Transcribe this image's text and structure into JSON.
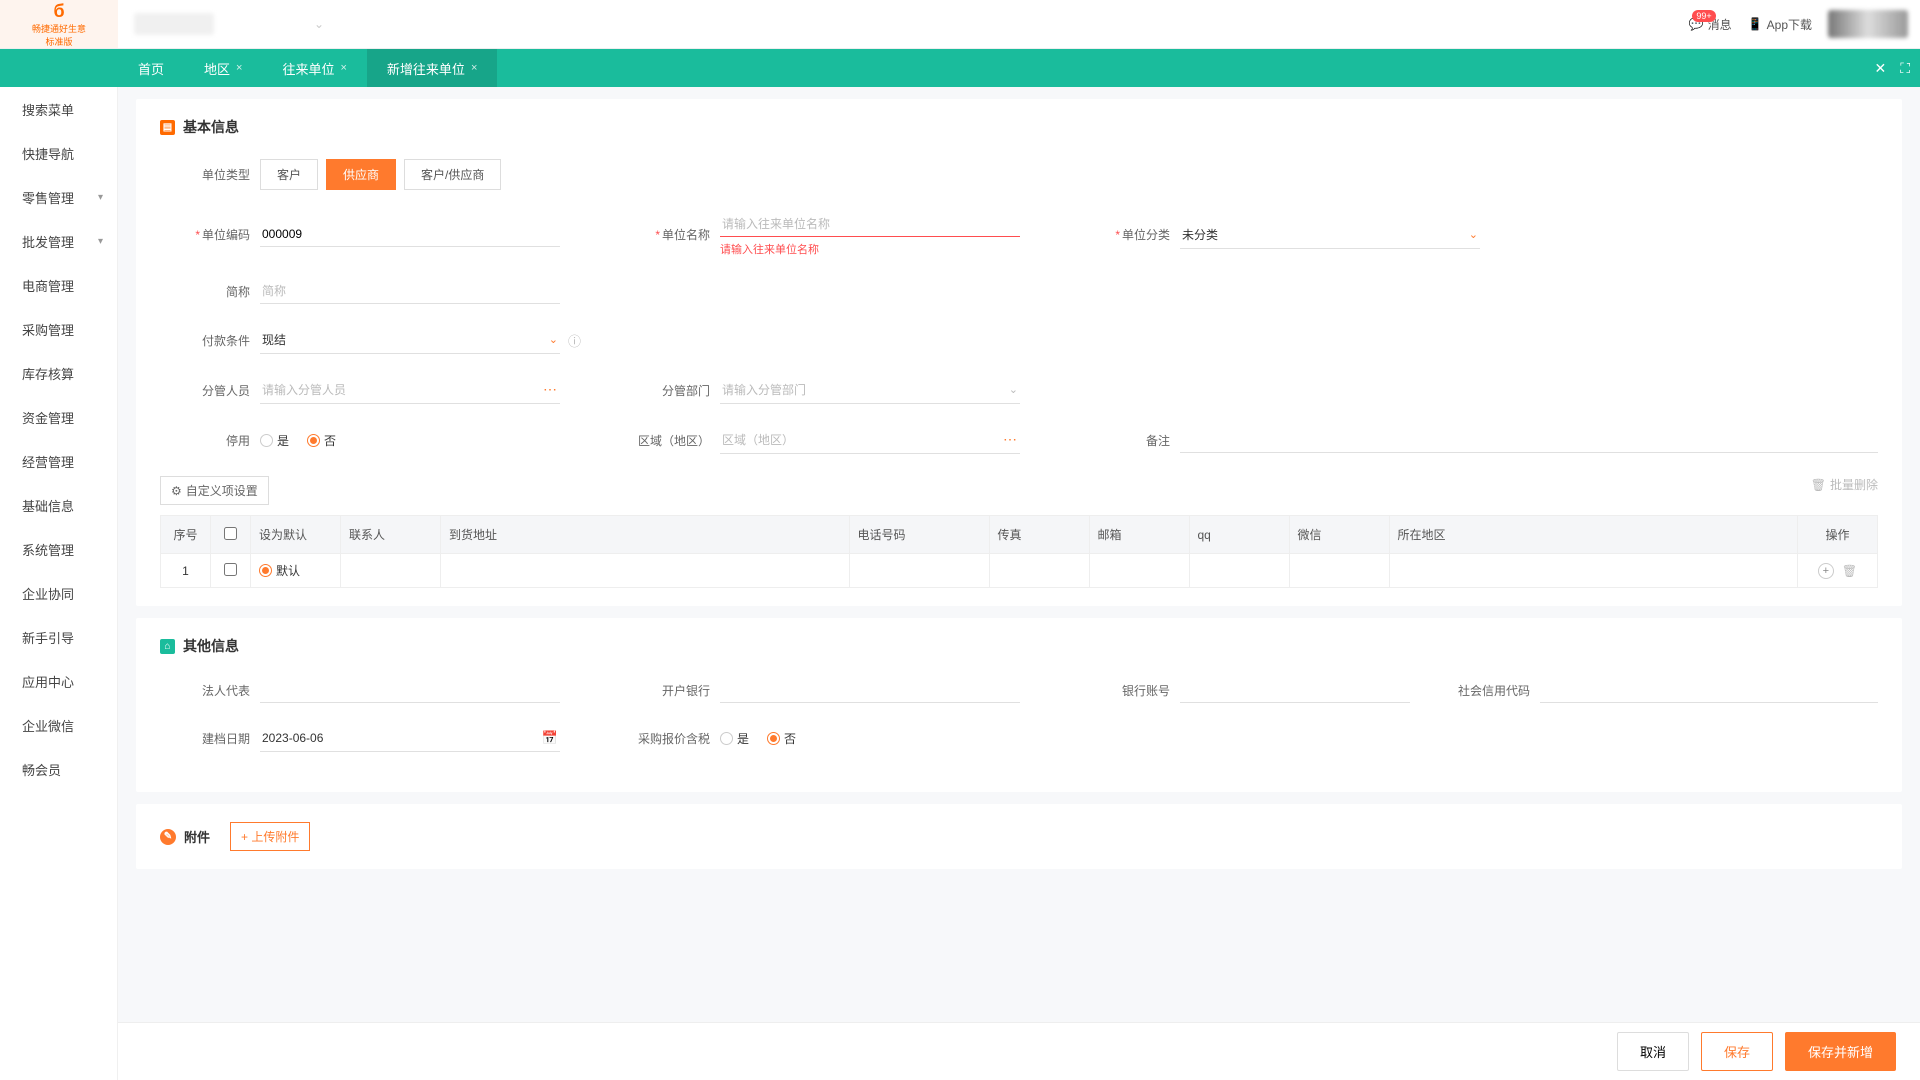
{
  "header": {
    "logo_main": "畅捷通好生意",
    "logo_sub": "标准版",
    "msg_label": "消息",
    "msg_badge": "99+",
    "app_download": "App下载"
  },
  "tabs": [
    {
      "label": "首页",
      "closable": false,
      "active": false
    },
    {
      "label": "地区",
      "closable": true,
      "active": false
    },
    {
      "label": "往来单位",
      "closable": true,
      "active": false
    },
    {
      "label": "新增往来单位",
      "closable": true,
      "active": true
    }
  ],
  "sidebar": [
    {
      "label": "搜索菜单",
      "expandable": false
    },
    {
      "label": "快捷导航",
      "expandable": false
    },
    {
      "label": "零售管理",
      "expandable": true
    },
    {
      "label": "批发管理",
      "expandable": true
    },
    {
      "label": "电商管理",
      "expandable": false
    },
    {
      "label": "采购管理",
      "expandable": false
    },
    {
      "label": "库存核算",
      "expandable": false
    },
    {
      "label": "资金管理",
      "expandable": false
    },
    {
      "label": "经营管理",
      "expandable": false
    },
    {
      "label": "基础信息",
      "expandable": false
    },
    {
      "label": "系统管理",
      "expandable": false
    },
    {
      "label": "企业协同",
      "expandable": false
    },
    {
      "label": "新手引导",
      "expandable": false
    },
    {
      "label": "应用中心",
      "expandable": false
    },
    {
      "label": "企业微信",
      "expandable": false
    },
    {
      "label": "畅会员",
      "expandable": false
    }
  ],
  "basic_section": {
    "title": "基本信息",
    "unit_type_label": "单位类型",
    "unit_type_options": [
      "客户",
      "供应商",
      "客户/供应商"
    ],
    "unit_type_selected": 1,
    "unit_code_label": "单位编码",
    "unit_code_value": "000009",
    "unit_name_label": "单位名称",
    "unit_name_placeholder": "请输入往来单位名称",
    "unit_name_error": "请输入往来单位名称",
    "unit_category_label": "单位分类",
    "unit_category_value": "未分类",
    "short_name_label": "简称",
    "short_name_placeholder": "简称",
    "payment_terms_label": "付款条件",
    "payment_terms_value": "现结",
    "manager_label": "分管人员",
    "manager_placeholder": "请输入分管人员",
    "dept_label": "分管部门",
    "dept_placeholder": "请输入分管部门",
    "disabled_label": "停用",
    "region_label": "区域（地区）",
    "region_placeholder": "区域（地区）",
    "remark_label": "备注",
    "yes": "是",
    "no": "否",
    "custom_fields_btn": "自定义项设置",
    "bulk_delete": "批量删除"
  },
  "contact_table": {
    "columns": [
      "序号",
      "",
      "设为默认",
      "联系人",
      "到货地址",
      "电话号码",
      "传真",
      "邮箱",
      "qq",
      "微信",
      "所在地区",
      "操作"
    ],
    "row": {
      "index": "1",
      "default_label": "默认"
    }
  },
  "other_section": {
    "title": "其他信息",
    "legal_rep": "法人代表",
    "bank": "开户银行",
    "bank_account": "银行账号",
    "credit_code": "社会信用代码",
    "create_date_label": "建档日期",
    "create_date_value": "2023-06-06",
    "tax_included_label": "采购报价含税",
    "yes": "是",
    "no": "否"
  },
  "attach_section": {
    "title": "附件",
    "upload_btn": "+ 上传附件"
  },
  "footer": {
    "cancel": "取消",
    "save": "保存",
    "save_and_new": "保存并新增"
  },
  "colors": {
    "primary_teal": "#1abc9c",
    "accent_orange": "#ff7a2d",
    "error_red": "#ff4d4f"
  }
}
